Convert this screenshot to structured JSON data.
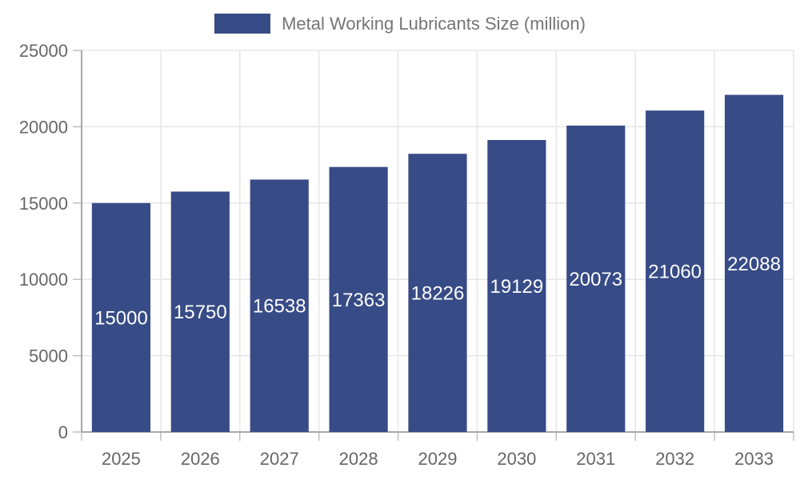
{
  "legend": {
    "label": "Metal Working Lubricants Size (million)"
  },
  "chart_data": {
    "type": "bar",
    "title": "Metal Working Lubricants Size (million)",
    "series_name": "Metal Working Lubricants Size (million)",
    "categories": [
      "2025",
      "2026",
      "2027",
      "2028",
      "2029",
      "2030",
      "2031",
      "2032",
      "2033"
    ],
    "values": [
      15000,
      15750,
      16538,
      17363,
      18226,
      19129,
      20073,
      21060,
      22088
    ],
    "xlabel": "",
    "ylabel": "",
    "ylim": [
      0,
      25000
    ],
    "yticks": [
      0,
      5000,
      10000,
      15000,
      20000,
      25000
    ],
    "grid": true,
    "legend_position": "top",
    "bar_labels_inside": true,
    "colors": {
      "bar_fill": "#374B86",
      "bar_label_text": "#ffffff",
      "axis_text": "#666666",
      "grid_line": "#e6e6e6",
      "axis_line": "#a8a8a8",
      "tick_mark": "#c0c0c0",
      "legend_text": "#757575",
      "background": "#ffffff"
    }
  }
}
